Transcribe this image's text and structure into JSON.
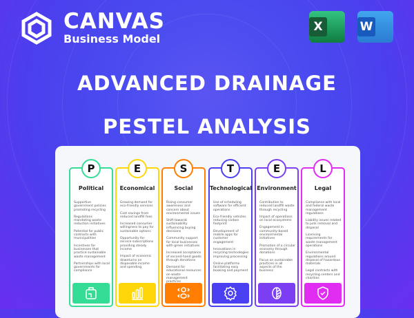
{
  "brand": {
    "name": "CANVAS",
    "subtitle": "Business Model"
  },
  "apps": [
    {
      "name": "excel-icon",
      "letter": "X",
      "color": "#1e7145"
    },
    {
      "name": "word-icon",
      "letter": "W",
      "color": "#2b5cc7"
    }
  ],
  "title": {
    "line1": "ADVANCED DRAINAGE",
    "line2": "PESTEL ANALYSIS"
  },
  "columns": [
    {
      "letter": "P",
      "title": "Political",
      "color": "#35dc95",
      "icon": "briefcase-icon",
      "items": [
        "Supportive government policies promoting recycling",
        "Regulations mandating waste reduction initiatives",
        "Potential for public contracts with municipalities",
        "Incentives for businesses that practice sustainable waste management",
        "Partnerships with local governments for compliance"
      ]
    },
    {
      "letter": "E",
      "title": "Economical",
      "color": "#ffd60a",
      "icon": "bar-chart-icon",
      "items": [
        "Growing demand for eco-friendly services",
        "Cost savings from reduced landfill fees",
        "Increased consumer willingness to pay for sustainable options",
        "Opportunity for service subscriptions providing steady income",
        "Impact of economic downturns on disposable income and spending"
      ]
    },
    {
      "letter": "S",
      "title": "Social",
      "color": "#ff7d00",
      "icon": "people-icon",
      "items": [
        "Rising consumer awareness and concern about environmental issues",
        "Shift towards sustainability influencing buying decisions",
        "Community support for local businesses with green initiatives",
        "Increased acceptance of second-hand goods through donations",
        "Demand for educational resources on waste management practices"
      ]
    },
    {
      "letter": "T",
      "title": "Technological",
      "color": "#4b3ff2",
      "icon": "gear-icon",
      "items": [
        "Use of scheduling software for efficient operations",
        "Eco-friendly vehicles reducing carbon footprint",
        "Development of mobile apps for customer engagement",
        "Innovations in recycling technologies improving processing",
        "Online platforms facilitating easy booking and payment"
      ]
    },
    {
      "letter": "E",
      "title": "Environment",
      "color": "#7b3ef2",
      "icon": "leaf-icon",
      "items": [
        "Contribution to reduced landfill waste through recycling",
        "Impact of operations on local ecosystems",
        "Engagement in community-based environmental initiatives",
        "Promotion of a circular economy through donations",
        "Focus on sustainable practices in all aspects of the business"
      ]
    },
    {
      "letter": "L",
      "title": "Legal",
      "color": "#e12cf2",
      "icon": "shield-check-icon",
      "items": [
        "Compliance with local and federal waste management regulations",
        "Liability issues related to junk removal and disposal",
        "Licensing requirements for waste management operations",
        "Environmental regulations around disposal of hazardous materials",
        "Legal contracts with recycling centers and charities"
      ]
    }
  ]
}
